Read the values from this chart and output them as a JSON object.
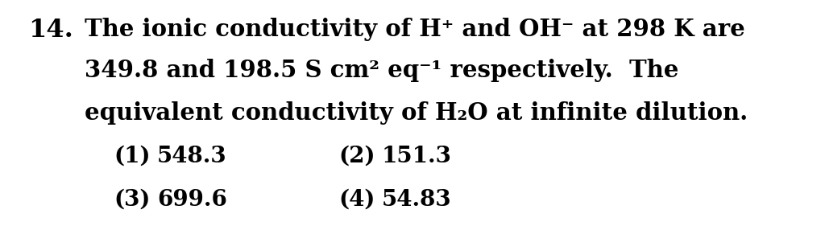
{
  "question_number": "14.",
  "line1": "The ionic conductivity of H⁺ and OH⁻ at 298 K are",
  "line2": "349.8 and 198.5 S cm² eq⁻¹ respectively.  The",
  "line3": "equivalent conductivity of H₂O at infinite dilution.",
  "opt1_label": "(1)",
  "opt1_val": "548.3",
  "opt2_label": "(2)",
  "opt2_val": "151.3",
  "opt3_label": "(3)",
  "opt3_val": "699.6",
  "opt4_label": "(4)",
  "opt4_val": "54.83",
  "bg_color": "#ffffff",
  "text_color": "#000000",
  "font_size_main": 21,
  "font_size_number": 23,
  "font_size_options": 20
}
